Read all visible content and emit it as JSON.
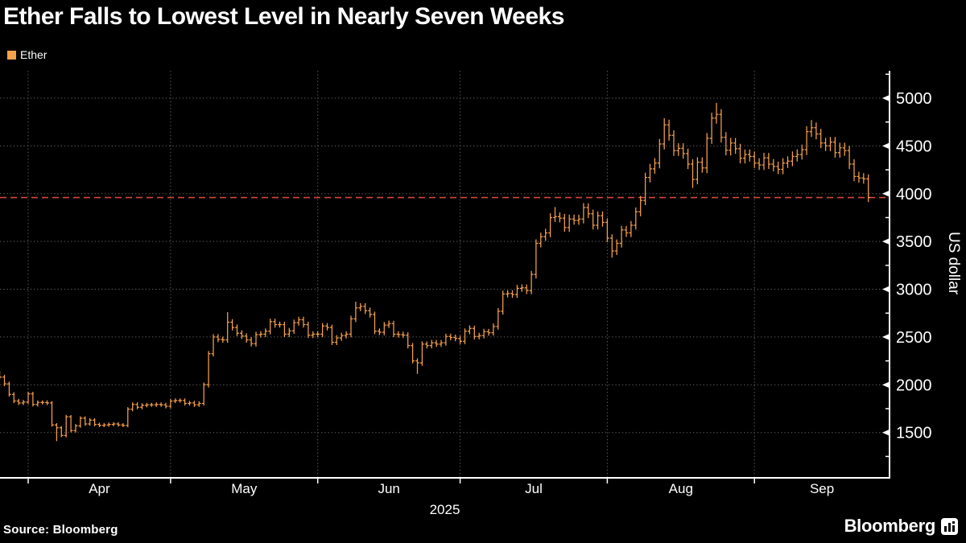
{
  "header": {
    "title": "Ether Falls to Lowest Level in Nearly Seven Weeks",
    "legend": [
      {
        "label": "Ether",
        "color": "#F7A04A"
      }
    ]
  },
  "footer": {
    "source": "Source: Bloomberg",
    "brand": "Bloomberg"
  },
  "y_axis": {
    "label": "US dollar",
    "major_ticks": [
      1500,
      2000,
      2500,
      3000,
      3500,
      4000,
      4500,
      5000
    ],
    "minor_tick_step": 250,
    "minor_tick_min": 1250,
    "minor_tick_max": 5250
  },
  "x_axis": {
    "months": [
      {
        "label": "Apr",
        "start_index": 6
      },
      {
        "label": "May",
        "start_index": 36
      },
      {
        "label": "Jun",
        "start_index": 67
      },
      {
        "label": "Jul",
        "start_index": 97
      },
      {
        "label": "Aug",
        "start_index": 128
      },
      {
        "label": "Sep",
        "start_index": 159
      }
    ],
    "year_label": "2025"
  },
  "reference_line": {
    "value": 3960,
    "color": "#D5483B"
  },
  "colors": {
    "background": "#000000",
    "bars": "#F7A04A",
    "grid": "#5E5E5E",
    "axis": "#FFFFFF",
    "text": "#FFFFFF",
    "reference": "#D5483B"
  },
  "chart_data": {
    "type": "bar",
    "subtype": "ohlc-daily",
    "series_name": "Ether",
    "unit": "US dollar",
    "frequency": "daily",
    "start_date": "2025-03-26",
    "end_date": "2025-09-25",
    "ylim": [
      1030,
      5290
    ],
    "grid": true,
    "legend_position": "top-left",
    "first_open": 2120,
    "last_price": 3960,
    "typical_daily_range_pct": 2.4,
    "closes": [
      2080,
      2010,
      1900,
      1830,
      1810,
      1820,
      1905,
      1795,
      1815,
      1815,
      1810,
      1580,
      1550,
      1470,
      1665,
      1520,
      1570,
      1650,
      1590,
      1630,
      1585,
      1575,
      1580,
      1585,
      1590,
      1580,
      1575,
      1745,
      1795,
      1765,
      1785,
      1790,
      1790,
      1795,
      1790,
      1775,
      1830,
      1835,
      1835,
      1805,
      1810,
      1790,
      1805,
      2000,
      2325,
      2500,
      2475,
      2470,
      2655,
      2600,
      2540,
      2510,
      2470,
      2430,
      2525,
      2530,
      2560,
      2660,
      2630,
      2630,
      2530,
      2565,
      2650,
      2680,
      2630,
      2520,
      2530,
      2530,
      2615,
      2600,
      2445,
      2490,
      2515,
      2530,
      2690,
      2805,
      2820,
      2775,
      2735,
      2560,
      2550,
      2625,
      2640,
      2530,
      2525,
      2520,
      2410,
      2250,
      2230,
      2425,
      2410,
      2440,
      2425,
      2440,
      2505,
      2495,
      2485,
      2455,
      2560,
      2590,
      2505,
      2515,
      2555,
      2545,
      2610,
      2770,
      2950,
      2955,
      2945,
      3010,
      3015,
      2985,
      3155,
      3480,
      3550,
      3590,
      3750,
      3760,
      3745,
      3645,
      3735,
      3720,
      3735,
      3855,
      3790,
      3670,
      3770,
      3700,
      3535,
      3400,
      3480,
      3620,
      3590,
      3670,
      3810,
      3930,
      4170,
      4260,
      4320,
      4520,
      4720,
      4610,
      4450,
      4475,
      4420,
      4310,
      4150,
      4330,
      4270,
      4580,
      4790,
      4830,
      4590,
      4455,
      4530,
      4470,
      4370,
      4410,
      4390,
      4320,
      4300,
      4375,
      4310,
      4285,
      4255,
      4320,
      4340,
      4390,
      4410,
      4460,
      4650,
      4690,
      4625,
      4530,
      4500,
      4540,
      4430,
      4480,
      4450,
      4310,
      4180,
      4165,
      4155,
      3960
    ],
    "extremes": {
      "12": {
        "low": 1410
      },
      "48": {
        "high": 2760
      },
      "75": {
        "high": 2870
      },
      "88": {
        "low": 2115
      },
      "117": {
        "high": 3860
      },
      "129": {
        "low": 3330
      },
      "140": {
        "high": 4790
      },
      "146": {
        "low": 4060
      },
      "151": {
        "high": 4950
      },
      "171": {
        "high": 4770
      },
      "183": {
        "low": 3930
      }
    }
  }
}
